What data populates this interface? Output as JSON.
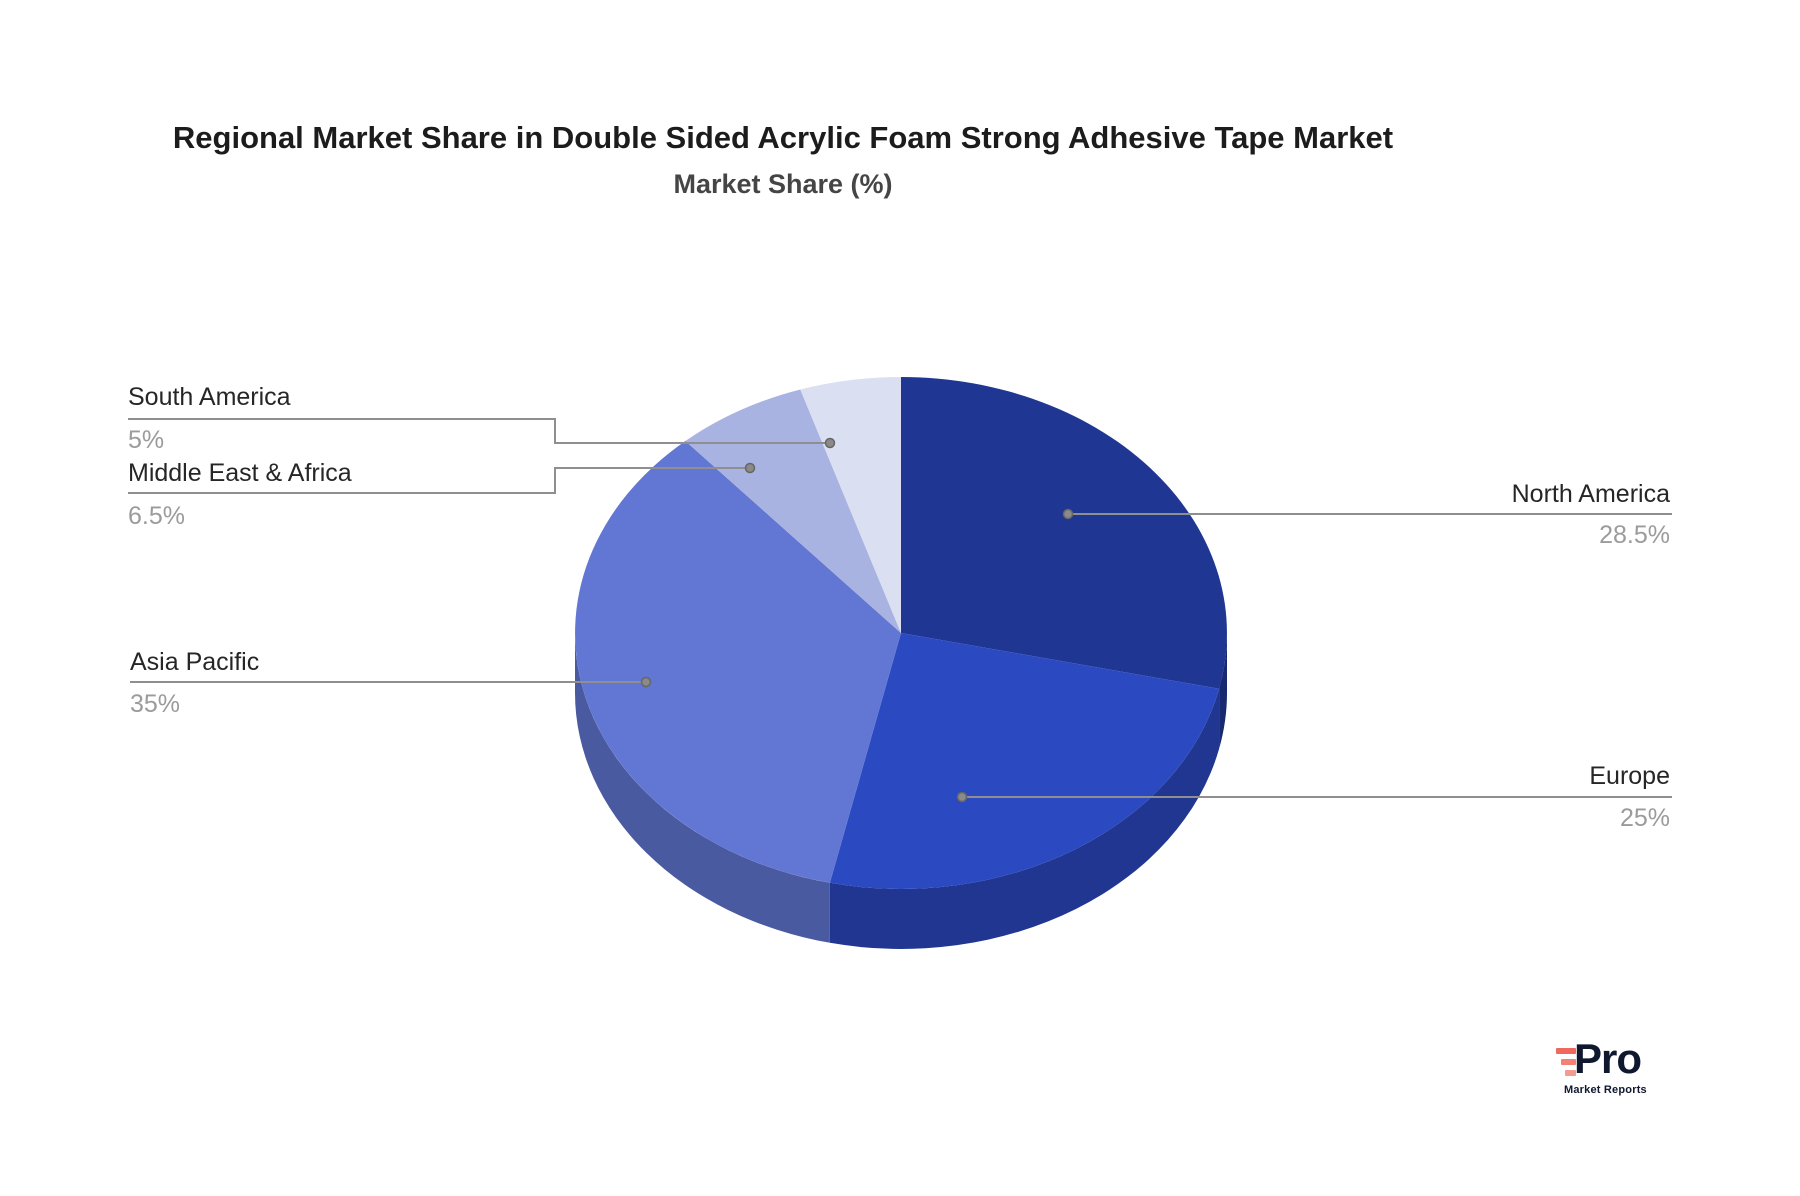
{
  "title": "Regional Market Share in Double Sided Acrylic Foam Strong Adhesive Tape Market",
  "subtitle": "Market Share (%)",
  "chart_data": {
    "type": "pie",
    "style": "3d",
    "start_angle": "12 o'clock, clockwise",
    "slices": [
      {
        "name": "North America",
        "value": 28.5,
        "value_label": "28.5%",
        "color": "#1F3693",
        "side_color": "#172A6F",
        "label_side": "right"
      },
      {
        "name": "Europe",
        "value": 25,
        "value_label": "25%",
        "color": "#2B4AC2",
        "side_color": "#203691",
        "label_side": "right"
      },
      {
        "name": "Asia Pacific",
        "value": 35,
        "value_label": "35%",
        "color": "#6277D3",
        "side_color": "#4A5AA1",
        "label_side": "left"
      },
      {
        "name": "Middle East & Africa",
        "value": 6.5,
        "value_label": "6.5%",
        "color": "#A9B3E1",
        "side_color": "#8A94C4",
        "label_side": "left"
      },
      {
        "name": "South America",
        "value": 5,
        "value_label": "5%",
        "color": "#DBDFF2",
        "side_color": "#B8BDD8",
        "label_side": "left"
      }
    ],
    "leader_line_color": "#8F8F8F",
    "leader_dot_color": "#8A8A8A",
    "label_color": "#262626",
    "value_color": "#9B9B9B",
    "legend": "none",
    "grid": false
  },
  "logo": {
    "brand": "Pro",
    "tagline": "Market Reports",
    "accent_colors": [
      "#EE6A5F",
      "#F18275",
      "#F49B90"
    ],
    "text_color": "#101830"
  }
}
